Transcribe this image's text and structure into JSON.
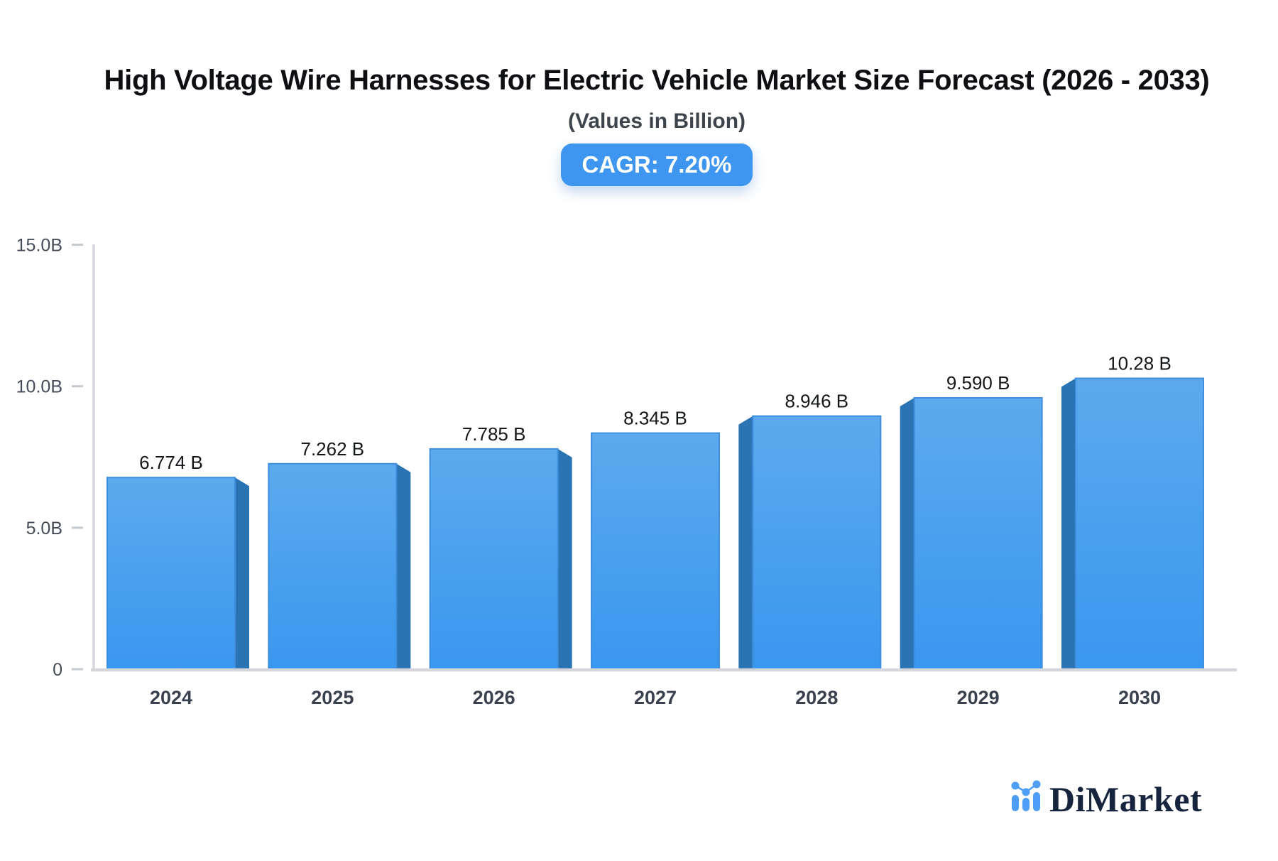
{
  "header": {
    "title": "High Voltage Wire Harnesses for Electric Vehicle Market Size Forecast (2026 - 2033)",
    "subtitle": "(Values in Billion)",
    "cagr_badge": "CAGR: 7.20%"
  },
  "chart_data": {
    "type": "bar",
    "title": "High Voltage Wire Harnesses for Electric Vehicle Market Size Forecast (2026 - 2033)",
    "subtitle": "(Values in Billion)",
    "cagr_percent": 7.2,
    "categories": [
      "2024",
      "2025",
      "2026",
      "2027",
      "2028",
      "2029",
      "2030"
    ],
    "values": [
      6.774,
      7.262,
      7.785,
      8.345,
      8.946,
      9.59,
      10.28
    ],
    "value_labels": [
      "6.774 B",
      "7.262 B",
      "7.785 B",
      "8.345 B",
      "8.946 B",
      "9.590 B",
      "10.28 B"
    ],
    "xlabel": "",
    "ylabel": "",
    "ylim": [
      0,
      15
    ],
    "yticks": [
      {
        "value": 0,
        "label": "0"
      },
      {
        "value": 5,
        "label": "5.0B"
      },
      {
        "value": 10,
        "label": "10.0B"
      },
      {
        "value": 15,
        "label": "15.0B"
      }
    ],
    "grid": false,
    "legend": "none",
    "style_3d": true,
    "colors": {
      "bar_gradient_top": "#5CAAED",
      "bar_gradient_bottom": "#3A97EF",
      "bar_stroke": "#3E8EDD",
      "bar_side": "#2B74B4",
      "axis_line": "#D5D7DC",
      "tick_mark": "#C5C9D0"
    }
  },
  "branding": {
    "logo_text": "DiMarket",
    "logo_icon": "mini-bar-chart-icon",
    "logo_icon_color": "#4D9EF4",
    "logo_text_color": "#16243D"
  }
}
